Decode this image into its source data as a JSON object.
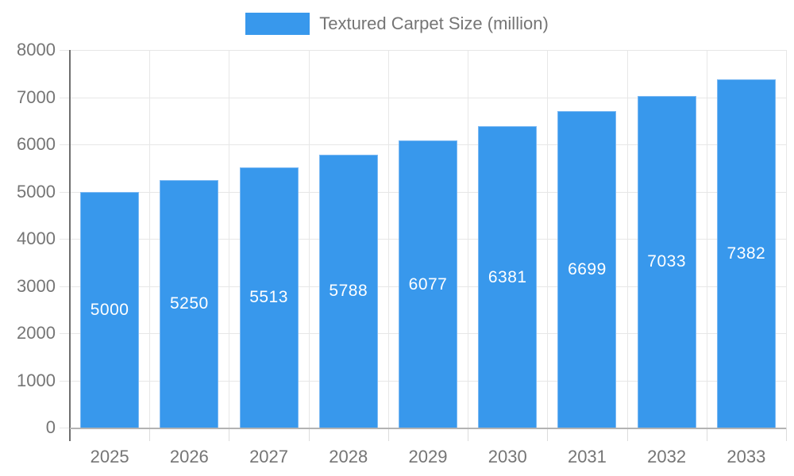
{
  "legend": {
    "items": [
      {
        "label": "Textured Carpet Size (million)",
        "swatch_color": "#3898EC"
      }
    ]
  },
  "chart_data": {
    "type": "bar",
    "title": "",
    "categories": [
      "2025",
      "2026",
      "2027",
      "2028",
      "2029",
      "2030",
      "2031",
      "2032",
      "2033"
    ],
    "series": [
      {
        "name": "Textured Carpet Size (million)",
        "values": [
          5000,
          5250,
          5513,
          5788,
          6077,
          6381,
          6699,
          7033,
          7382
        ]
      }
    ],
    "value_labels": [
      "5000",
      "5250",
      "5513",
      "5788",
      "6077",
      "6381",
      "6699",
      "7033",
      "7382"
    ],
    "xlabel": "",
    "ylabel": "",
    "ylim": [
      0,
      8000
    ],
    "ytick_step": 1000,
    "ytick_labels": [
      "0",
      "1000",
      "2000",
      "3000",
      "4000",
      "5000",
      "6000",
      "7000",
      "8000"
    ],
    "grid": true,
    "legend_position": "top-center",
    "value_label_position": "inside-center",
    "colors": {
      "bar_fill": "#3898EC",
      "bar_border": "#7CB9F3",
      "grid_line": "#E7E7E7",
      "y_axis_line": "#6E6E6E",
      "x_axis_line": "#B3B3B3",
      "tick_text": "#757575",
      "value_text": "#FFFFFF",
      "background": "#FFFFFF"
    }
  }
}
